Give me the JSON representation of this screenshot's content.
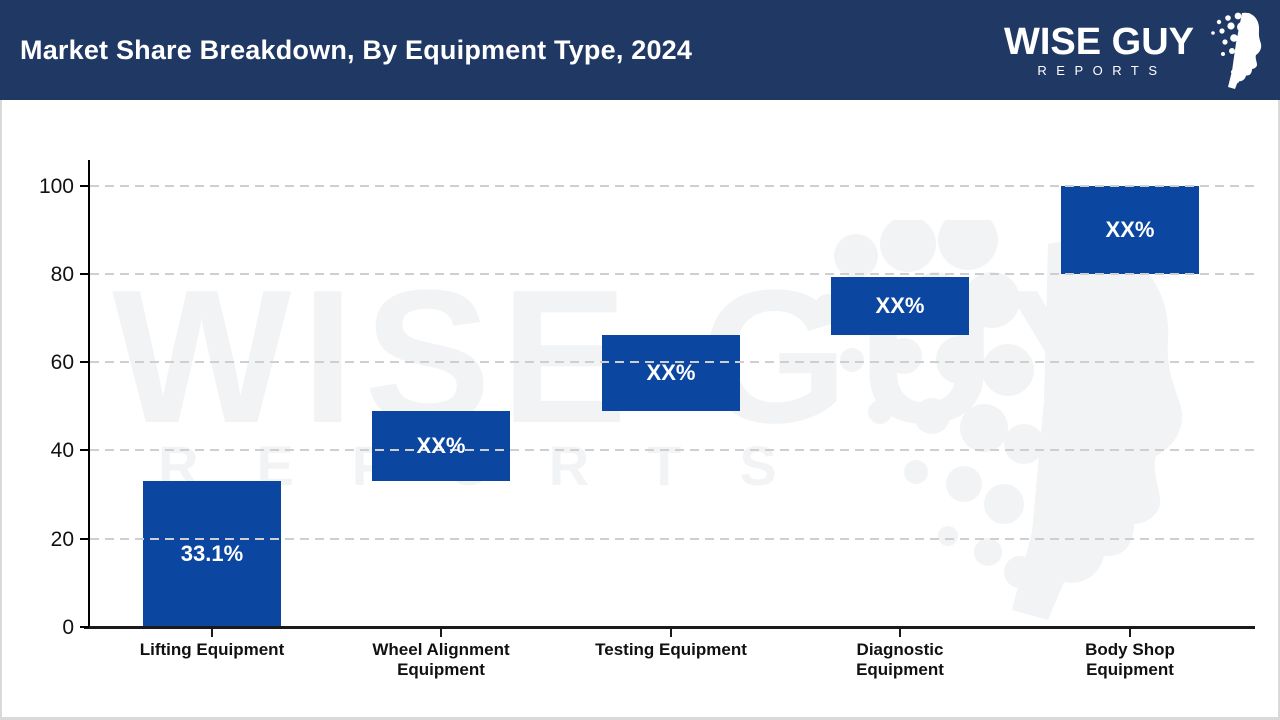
{
  "header": {
    "title": "Market Share Breakdown, By Equipment Type, 2024",
    "bg_color": "#1f3864",
    "logo": {
      "line1": "WISE GUY",
      "line2": "REPORTS"
    }
  },
  "watermark": {
    "line1": "WISE GUY",
    "line2": "REPORTS"
  },
  "chart_data": {
    "type": "bar",
    "subtype": "waterfall",
    "title": "Market Share Breakdown, By Equipment Type, 2024",
    "xlabel": "",
    "ylabel": "",
    "ylim": [
      0,
      105
    ],
    "y_ticks": [
      0,
      20,
      40,
      60,
      80,
      100
    ],
    "grid": "horizontal dashed, drawn over bars",
    "legend": "none",
    "bar_color": "#0b47a0",
    "bar_label_color": "#ffffff",
    "categories": [
      "Lifting Equipment",
      "Wheel Alignment\nEquipment",
      "Testing Equipment",
      "Diagnostic\nEquipment",
      "Body Shop\nEquipment"
    ],
    "segments": [
      {
        "category": "Lifting Equipment",
        "start": 0,
        "end": 33.1,
        "value": 33.1,
        "label": "33.1%"
      },
      {
        "category": "Wheel Alignment Equipment",
        "start": 33.1,
        "end": 48.9,
        "value": 15.8,
        "label": "XX%"
      },
      {
        "category": "Testing Equipment",
        "start": 49.0,
        "end": 66.1,
        "value": 17.1,
        "label": "XX%"
      },
      {
        "category": "Diagnostic Equipment",
        "start": 66.1,
        "end": 79.3,
        "value": 13.2,
        "label": "XX%"
      },
      {
        "category": "Body Shop Equipment",
        "start": 80.0,
        "end": 100.0,
        "value": 20.0,
        "label": "XX%"
      }
    ]
  }
}
